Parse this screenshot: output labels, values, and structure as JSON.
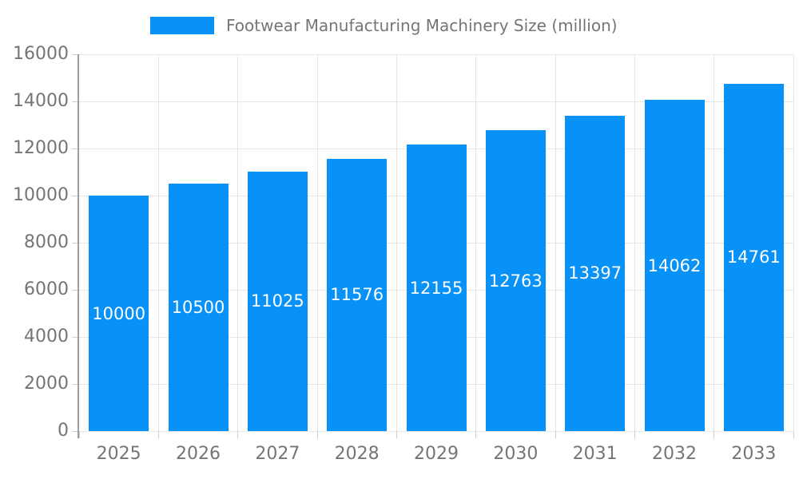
{
  "chart_data": {
    "type": "bar",
    "title": "Footwear Manufacturing Machinery Size (million)",
    "legend": {
      "position": "top",
      "label": "Footwear Manufacturing Machinery Size (million)",
      "swatch_color": "#0892f8"
    },
    "categories": [
      "2025",
      "2026",
      "2027",
      "2028",
      "2029",
      "2030",
      "2031",
      "2032",
      "2033"
    ],
    "series": [
      {
        "name": "Footwear Manufacturing Machinery Size (million)",
        "color": "#0892f8",
        "values": [
          10000,
          10500,
          11025,
          11576,
          12155,
          12763,
          13397,
          14062,
          14761
        ]
      }
    ],
    "bar_value_labels": [
      "10000",
      "10500",
      "11025",
      "11576",
      "12155",
      "12763",
      "13397",
      "14062",
      "14761"
    ],
    "xlabel": "",
    "ylabel": "",
    "ylim": [
      0,
      16000
    ],
    "yticks": [
      0,
      2000,
      4000,
      6000,
      8000,
      10000,
      12000,
      14000,
      16000
    ],
    "grid": true
  },
  "colors": {
    "bar": "#0892f8",
    "bar_label_text": "#ffffff",
    "axis_text": "#757575",
    "gridline": "#e6e6e6",
    "axis_line": "#9e9e9e",
    "tick_mark": "#cccccc",
    "background": "#ffffff"
  }
}
